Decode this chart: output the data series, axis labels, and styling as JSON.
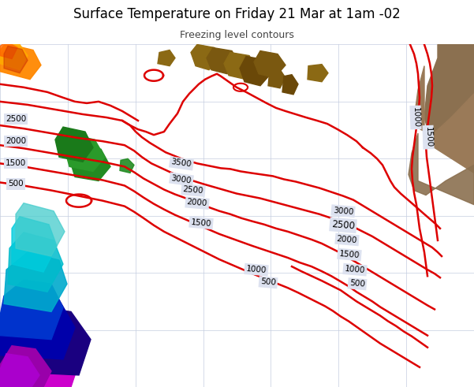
{
  "title": "Surface Temperature on Friday 21 Mar at 1am -02",
  "subtitle": "Freezing level contours",
  "title_fontsize": 12,
  "subtitle_fontsize": 9,
  "bg_color": "#dde2f0",
  "contour_color": "#dd0000",
  "contour_lw": 1.8,
  "label_fontsize": 7.5,
  "grid_color": "#c5cde0",
  "grid_lw": 0.5
}
